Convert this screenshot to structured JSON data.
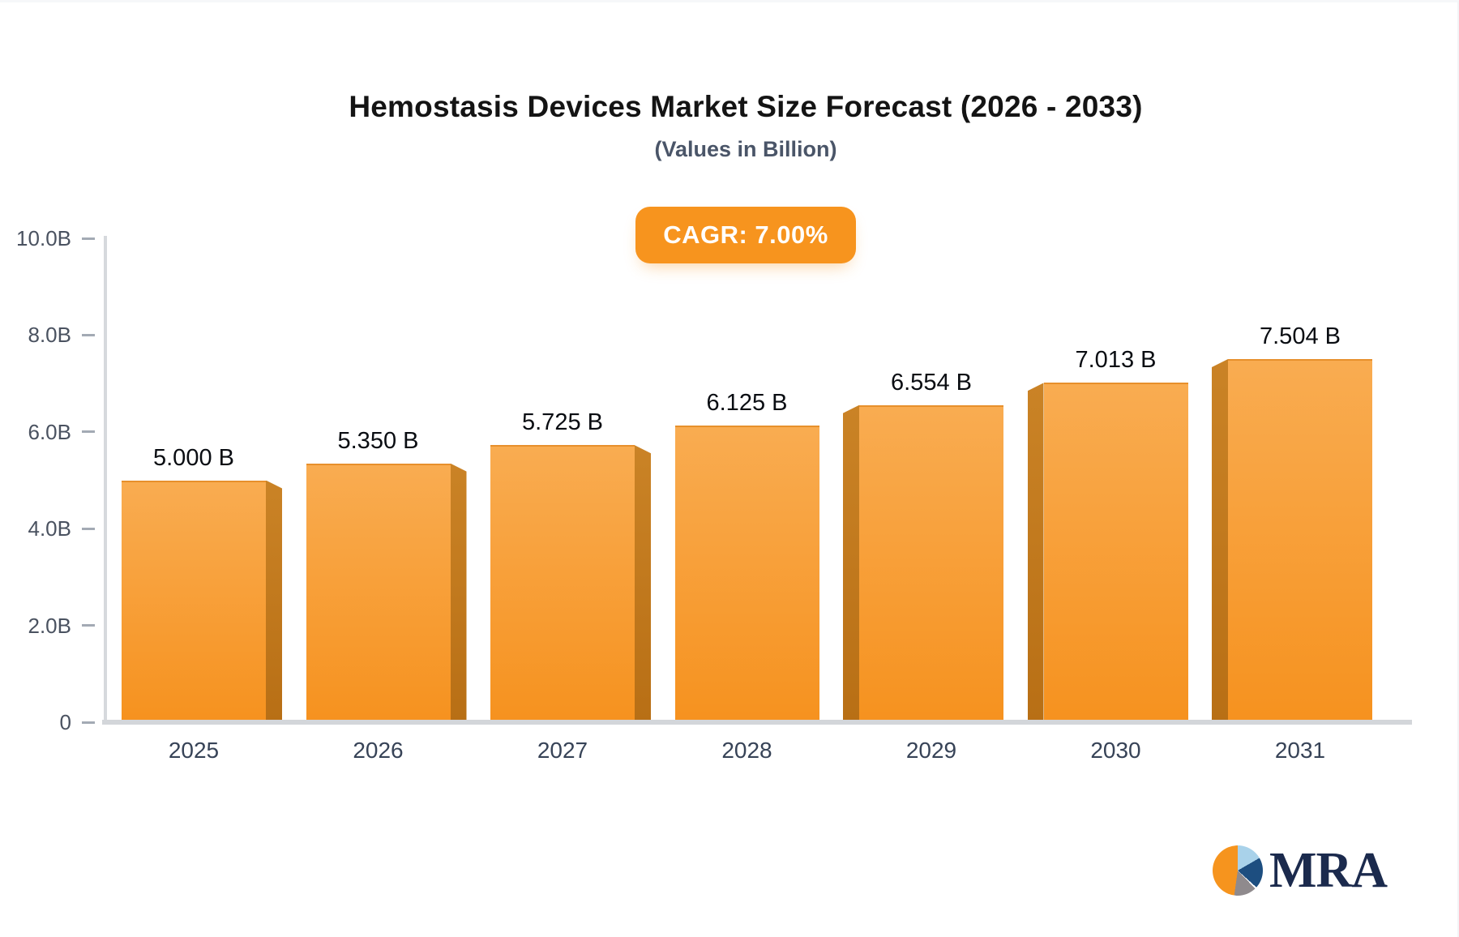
{
  "title": "Hemostasis Devices Market Size Forecast (2026 - 2033)",
  "subtitle": "(Values in Billion)",
  "badge": {
    "label": "CAGR: 7.00%",
    "color": "#F7941E"
  },
  "chart_data": {
    "type": "bar",
    "title": "Hemostasis Devices Market Size Forecast (2026 - 2033)",
    "subtitle": "(Values in Billion)",
    "categories": [
      "2025",
      "2026",
      "2027",
      "2028",
      "2029",
      "2030",
      "2031"
    ],
    "values": [
      5.0,
      5.35,
      5.725,
      6.125,
      6.554,
      7.013,
      7.504
    ],
    "value_labels": [
      "5.000 B",
      "5.350 B",
      "5.725 B",
      "6.125 B",
      "6.554 B",
      "7.013 B",
      "7.504 B"
    ],
    "cagr": "7.00%",
    "ylim": [
      0,
      10
    ],
    "yticks": [
      {
        "label": "10.0B",
        "value": 10
      },
      {
        "label": "8.0B",
        "value": 8
      },
      {
        "label": "6.0B",
        "value": 6
      },
      {
        "label": "4.0B",
        "value": 4
      },
      {
        "label": "2.0B",
        "value": 2
      },
      {
        "label": "0",
        "value": 0
      }
    ],
    "grid": false,
    "legend": false,
    "colors": {
      "bar_top": "#F9AC51",
      "bar_bottom": "#F6921F",
      "bar_side_top": "#CA8326",
      "bar_side_bottom": "#B86F15"
    }
  },
  "logo": {
    "text": "MRA",
    "pie_colors": {
      "light_blue": "#A9D2EA",
      "navy": "#1D4E80",
      "gray": "#8F8A8D",
      "orange": "#F6941E"
    }
  }
}
